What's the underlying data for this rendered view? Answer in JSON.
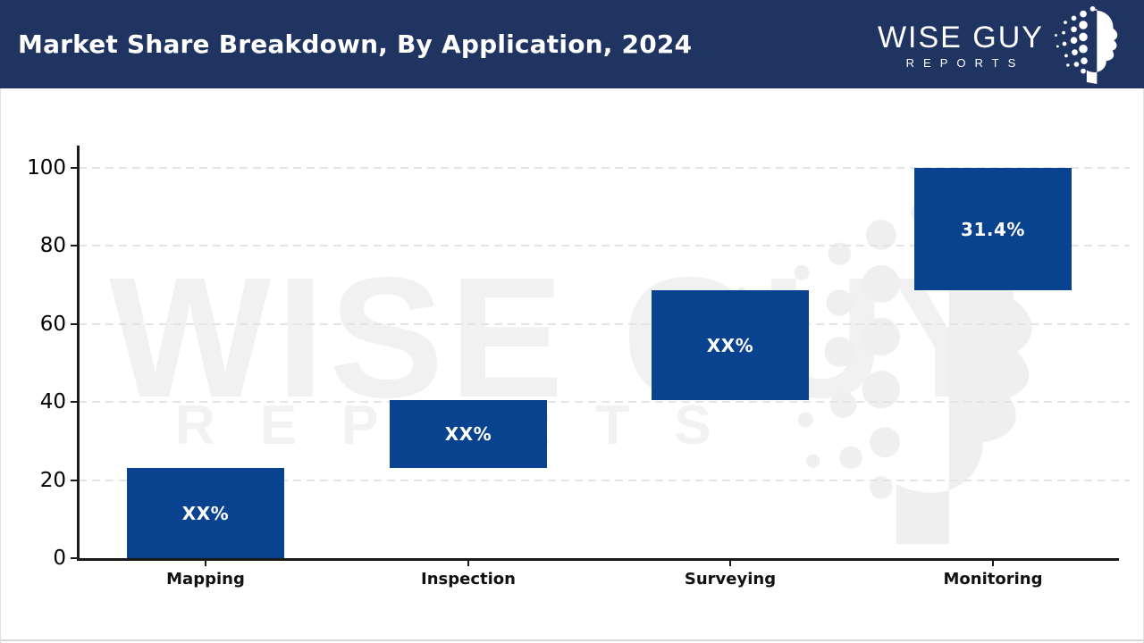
{
  "header": {
    "title": "Market Share Breakdown, By Application, 2024",
    "logo": {
      "line1": "WISE GUY",
      "line2": "REPORTS"
    }
  },
  "watermark": {
    "line1": "WISE GUY",
    "line2": "REPORTS"
  },
  "colors": {
    "header_bg": "#203462",
    "bar": "#09428f",
    "bar_label": "#ffffff",
    "gridline": "#e4e4e4",
    "axis": "#1a1a1a",
    "watermark": "#f1f1f1"
  },
  "chart_data": {
    "type": "bar",
    "subtype": "waterfall-floating-segments",
    "title": "Market Share Breakdown, By Application, 2024",
    "categories": [
      "Mapping",
      "Inspection",
      "Surveying",
      "Monitoring"
    ],
    "segments": [
      {
        "category": "Mapping",
        "start": 0,
        "end": 23.1,
        "value": 23.1,
        "label": "XX%"
      },
      {
        "category": "Inspection",
        "start": 23.1,
        "end": 40.5,
        "value": 17.4,
        "label": "XX%"
      },
      {
        "category": "Surveying",
        "start": 40.5,
        "end": 68.6,
        "value": 28.1,
        "label": "XX%"
      },
      {
        "category": "Monitoring",
        "start": 68.6,
        "end": 100,
        "value": 31.4,
        "label": "31.4%"
      }
    ],
    "xlabel": "",
    "ylabel": "",
    "ylim": [
      0,
      100
    ],
    "yticks": [
      0,
      20,
      40,
      60,
      80,
      100
    ],
    "grid": "horizontal-dashed",
    "legend": "none"
  }
}
